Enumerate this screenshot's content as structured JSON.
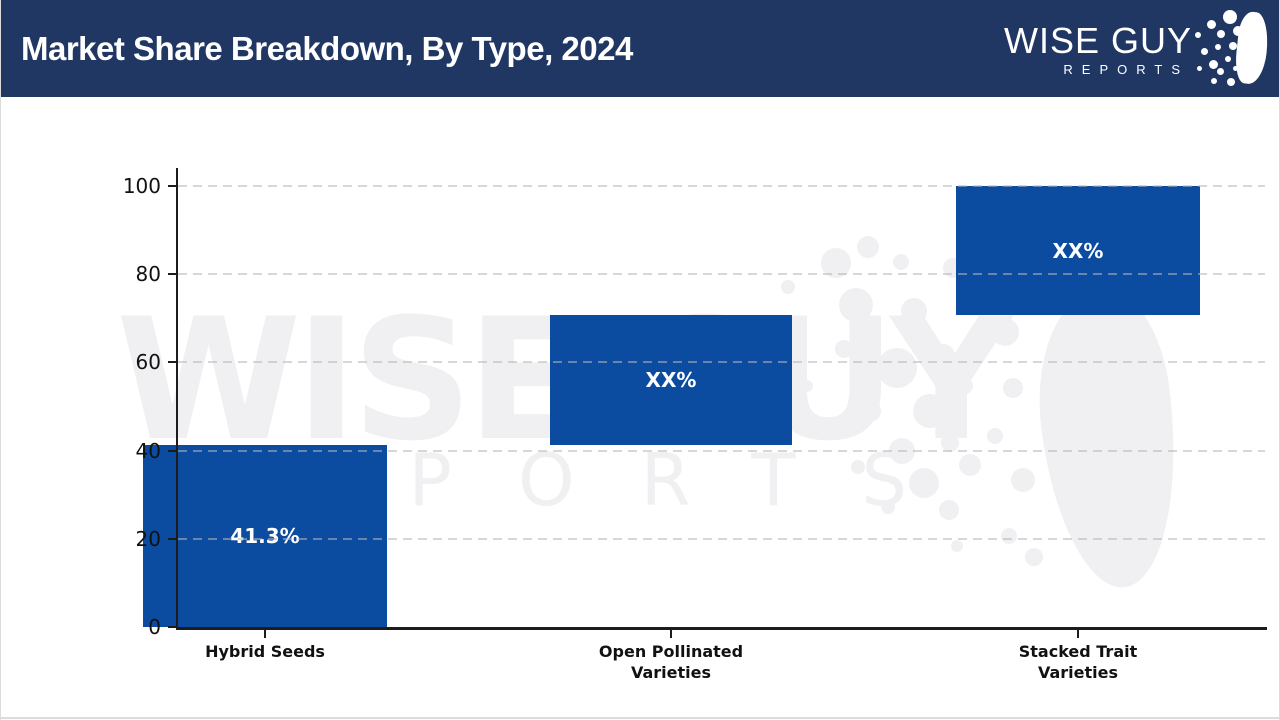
{
  "theme": {
    "header_bg": "#203764",
    "bar_color": "#0b4ba0",
    "value_label_color": "#ffffff"
  },
  "header": {
    "title": "Market Share Breakdown, By Type, 2024",
    "logo": {
      "line1": "WISE GUY",
      "line2": "REPORTS"
    }
  },
  "watermark": {
    "line1": "WISE GUY",
    "line2": "REPORTS"
  },
  "chart_data": {
    "type": "bar",
    "subtype": "waterfall",
    "title": "Market Share Breakdown, By Type, 2024",
    "xlabel": "",
    "ylabel": "",
    "ylim": [
      0,
      100
    ],
    "yticks": [
      0,
      20,
      40,
      60,
      80,
      100
    ],
    "grid": "horizontal-dashed",
    "legend": "none",
    "bars": [
      {
        "category": "Hybrid Seeds",
        "category_lines": [
          "Hybrid Seeds",
          ""
        ],
        "start": 0,
        "end": 41.3,
        "value_label": "41.3%"
      },
      {
        "category": "Open Pollinated Varieties",
        "category_lines": [
          "Open Pollinated",
          "Varieties"
        ],
        "start": 41.3,
        "end": 70.7,
        "value_label": "XX%"
      },
      {
        "category": "Stacked Trait Varieties",
        "category_lines": [
          "Stacked Trait",
          "Varieties"
        ],
        "start": 70.7,
        "end": 100,
        "value_label": "XX%"
      }
    ]
  }
}
